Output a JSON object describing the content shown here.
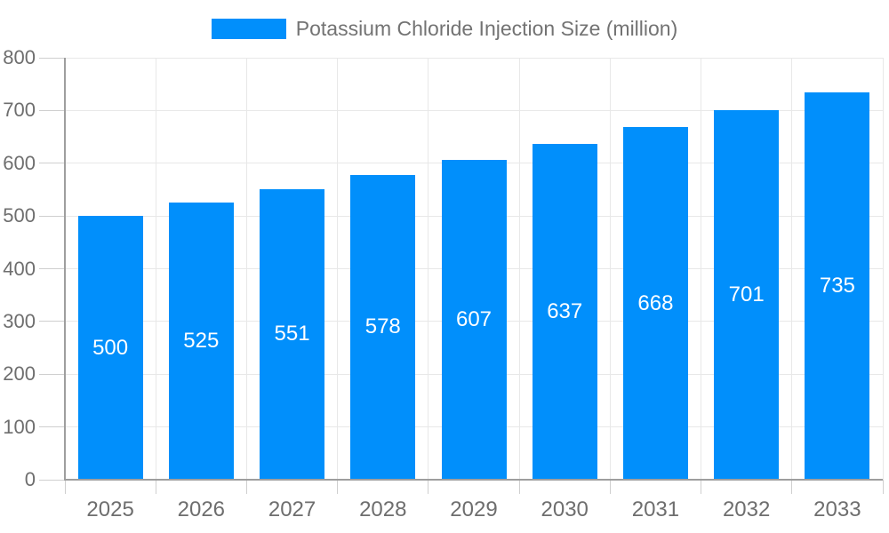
{
  "chart_data": {
    "type": "bar",
    "title": "Potassium Chloride Injection Size (million)",
    "categories": [
      "2025",
      "2026",
      "2027",
      "2028",
      "2029",
      "2030",
      "2031",
      "2032",
      "2033"
    ],
    "values": [
      500,
      525,
      551,
      578,
      607,
      637,
      668,
      701,
      735
    ],
    "xlabel": "",
    "ylabel": "",
    "ylim": [
      0,
      800
    ],
    "ytick_step": 100,
    "grid": true,
    "legend_position": "top-center",
    "bar_value_labels": true,
    "colors": {
      "bar": "#018ffb",
      "bar_label": "#ffffff",
      "axis_line": "#9e9e9e",
      "grid_line": "#e8e8e8",
      "tick_line": "#cfcfcf",
      "axis_label": "#6e6e6e",
      "legend_text": "#737373",
      "background": "#ffffff"
    }
  }
}
